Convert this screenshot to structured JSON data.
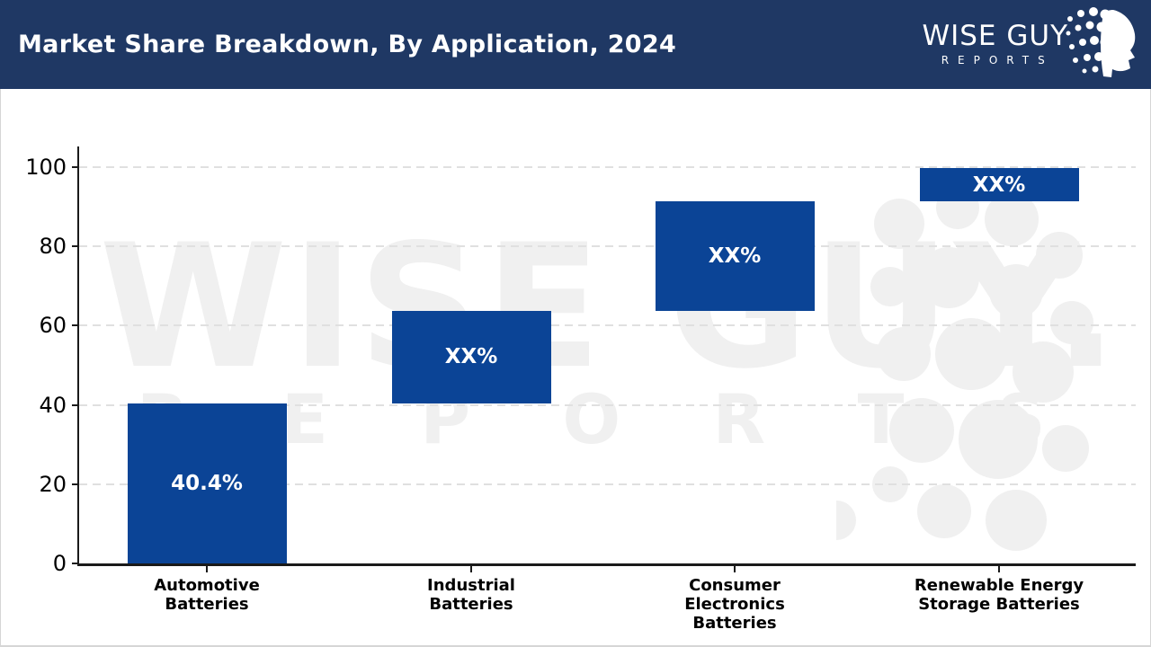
{
  "header": {
    "title": "Market Share Breakdown, By Application, 2024",
    "logo": {
      "line1": "WISE GUY",
      "line2": "REPORTS"
    }
  },
  "watermark": {
    "line1": "WISE GUY.",
    "line2": "R E P O R T S"
  },
  "colors": {
    "header_bg": "#1f3864",
    "bar": "#0b4496",
    "grid": "#e0e0e0",
    "axis": "#1a1a1a",
    "watermark": "#f0f0f0",
    "value_label": "#ffffff"
  },
  "chart_data": {
    "type": "bar",
    "variant": "waterfall",
    "title": "Market Share Breakdown, By Application, 2024",
    "categories": [
      "Automotive\nBatteries",
      "Industrial\nBatteries",
      "Consumer\nElectronics\nBatteries",
      "Renewable Energy\nStorage Batteries"
    ],
    "bars": [
      {
        "category": "Automotive Batteries",
        "start": 0,
        "end": 40.4,
        "label": "40.4%"
      },
      {
        "category": "Industrial Batteries",
        "start": 40.4,
        "end": 63.7,
        "label": "XX%"
      },
      {
        "category": "Consumer Electronics Batteries",
        "start": 63.7,
        "end": 91.3,
        "label": "XX%"
      },
      {
        "category": "Renewable Energy Storage Batteries",
        "start": 91.3,
        "end": 99.8,
        "label": "XX%"
      }
    ],
    "bar_color": "#0b4496",
    "y_ticks": [
      0,
      20,
      40,
      60,
      80,
      100
    ],
    "ylim": [
      0,
      105
    ],
    "xlabel": "",
    "ylabel": "",
    "grid": "horizontal-dashed",
    "legend": "none",
    "value_labels_inside_bars": true
  }
}
